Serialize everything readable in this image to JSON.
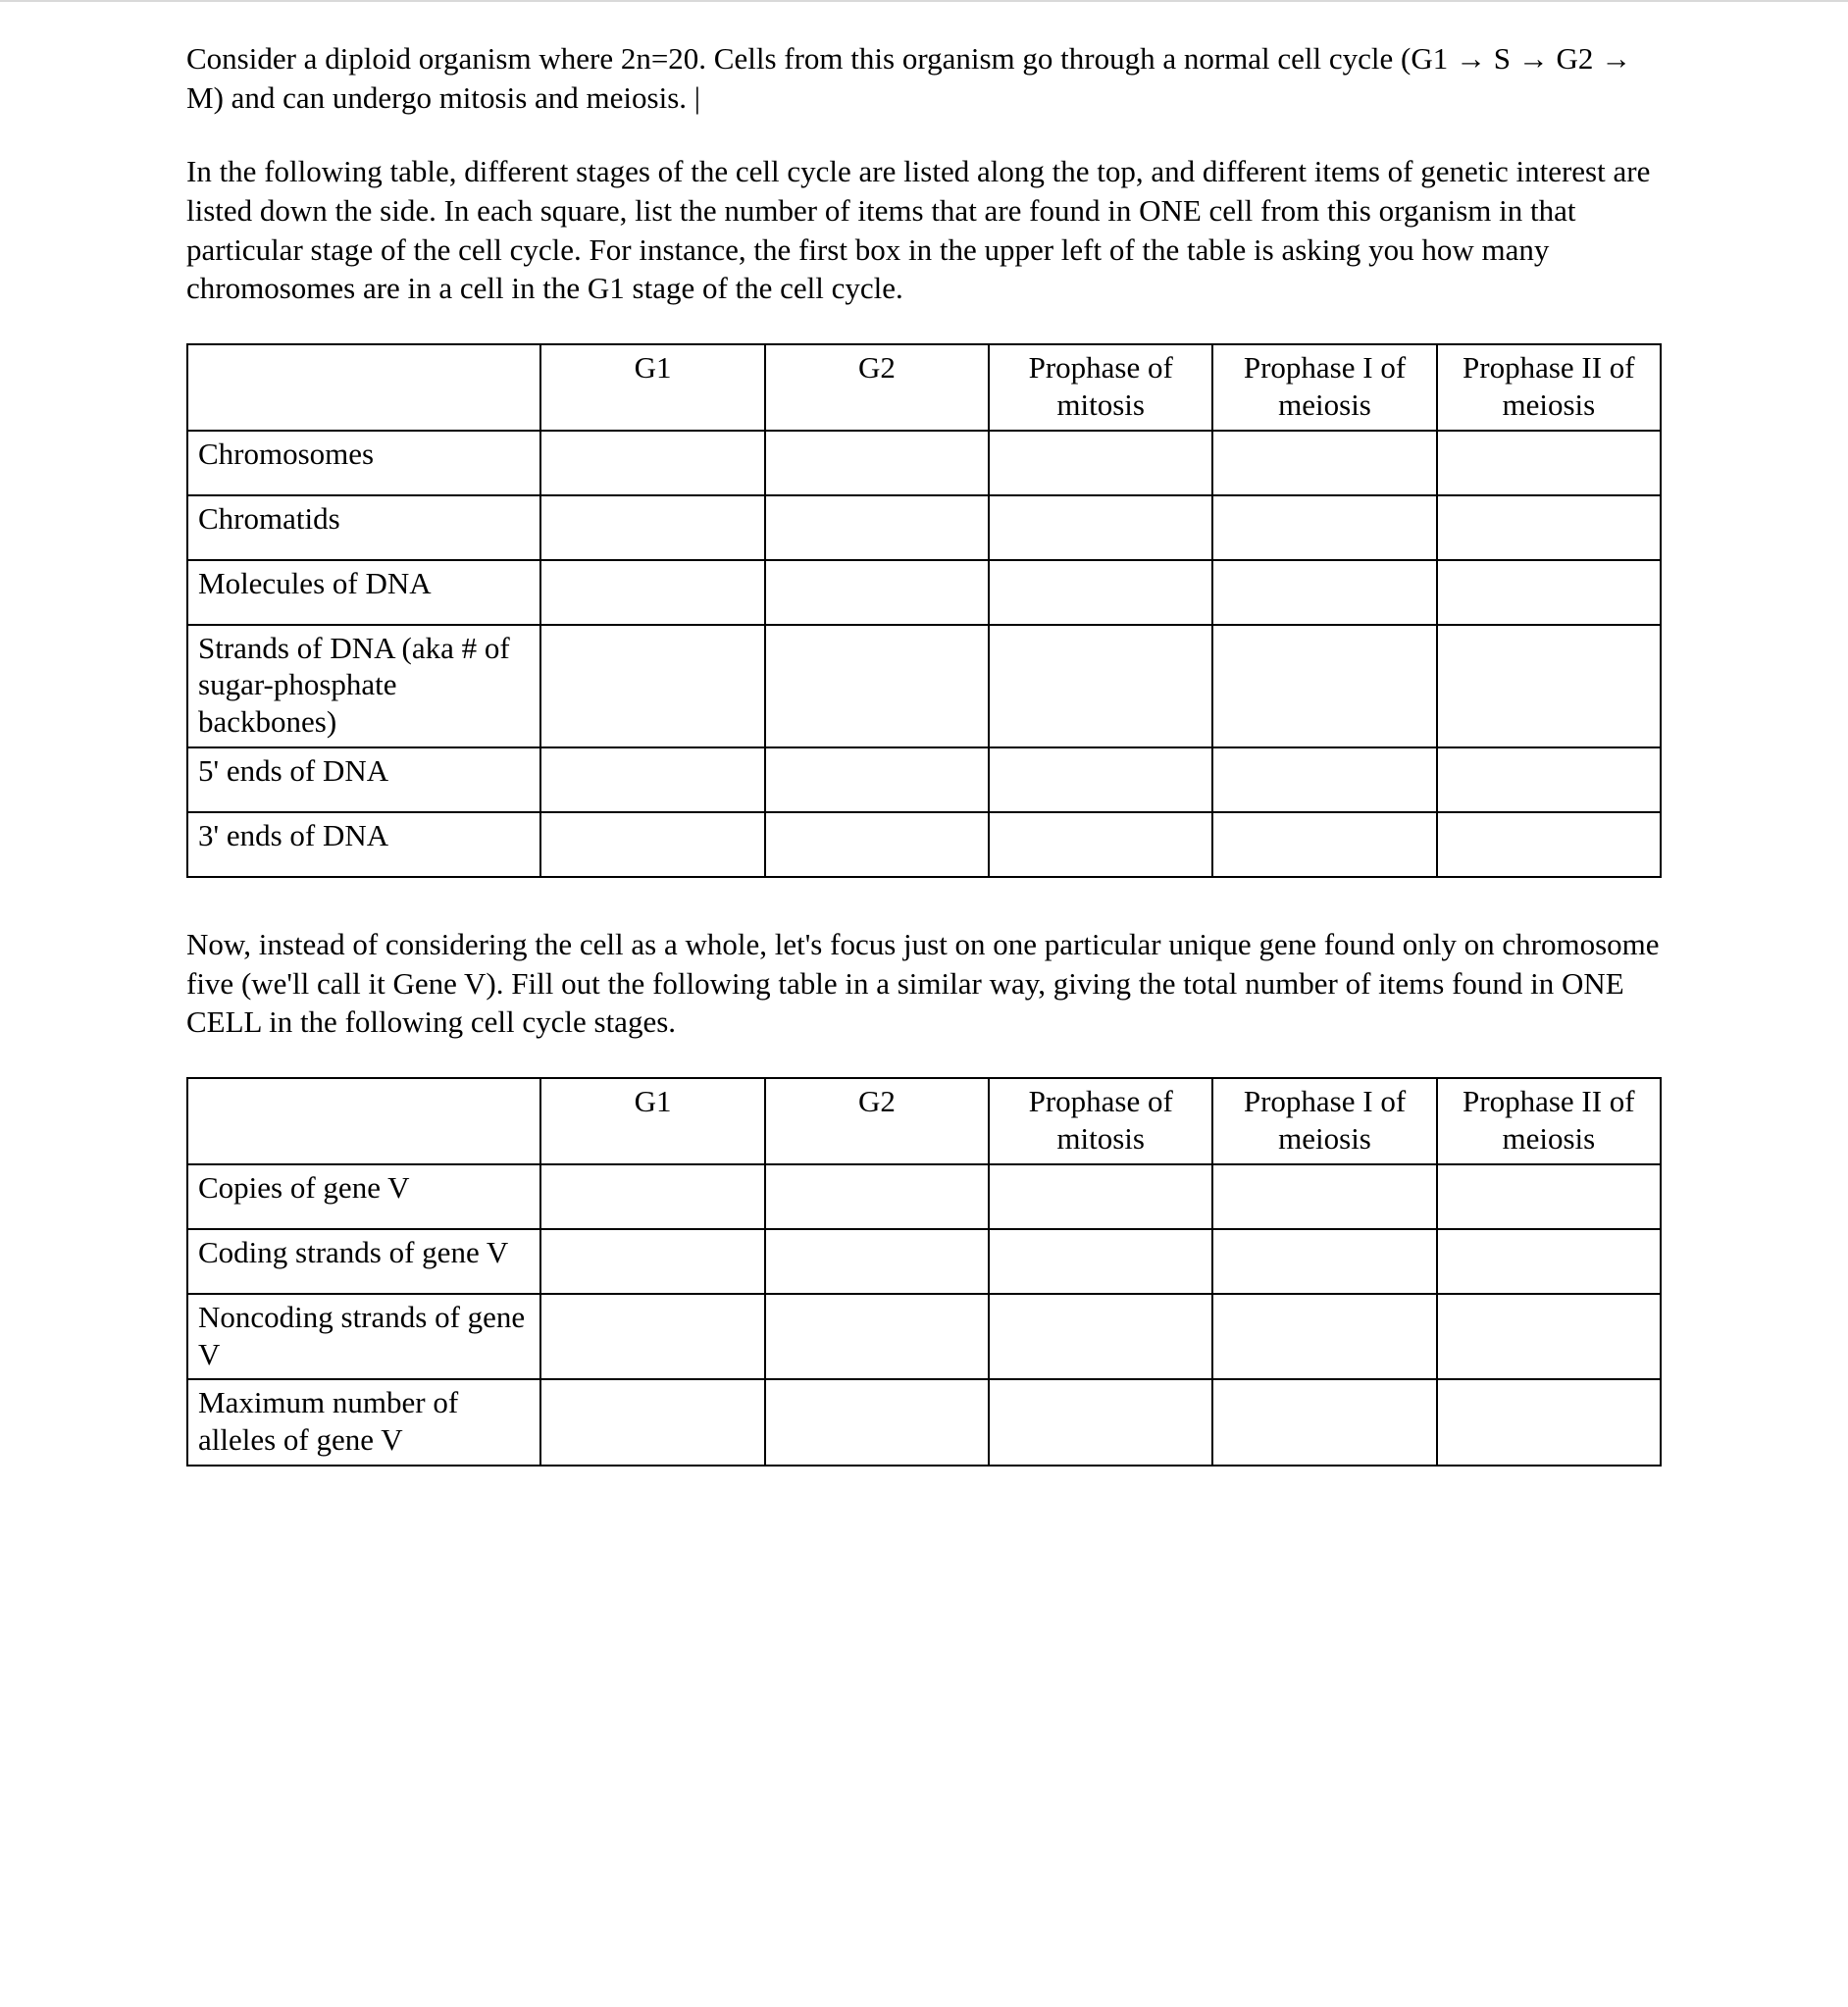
{
  "intro1": "Consider a diploid organism where 2n=20. Cells from this organism go through a normal cell cycle (G1 → S → G2 → M) and can undergo mitosis and meiosis.",
  "intro2": "In the following table, different stages of the cell cycle are listed along the top, and different items of genetic interest are listed down the side. In each square, list the number of items that are found in ONE cell from this organism in that particular stage of the cell cycle. For instance, the first box in the upper left of the table is asking you how many chromosomes are in a cell in the G1 stage of the cell cycle.",
  "intro3": "Now, instead of considering the cell as a whole, let's focus just on one particular unique gene found only on chromosome five (we'll call it Gene V). Fill out the following table in a similar way, giving the total number of items found in ONE CELL in the following cell cycle stages.",
  "headers": {
    "blank": "",
    "c1": "G1",
    "c2": "G2",
    "c3": "Prophase of mitosis",
    "c4": "Prophase I of meiosis",
    "c5": "Prophase II of meiosis"
  },
  "table1_rows": {
    "r1": "Chromosomes",
    "r2": "Chromatids",
    "r3": "Molecules of DNA",
    "r4": "Strands of DNA (aka # of sugar-phosphate backbones)",
    "r5": "5' ends of DNA",
    "r6": "3' ends of DNA"
  },
  "table2_rows": {
    "r1": "Copies of gene V",
    "r2": "Coding strands of gene V",
    "r3": "Noncoding strands of gene V",
    "r4": "Maximum number of alleles of gene V"
  },
  "cursor_glyph": "|"
}
